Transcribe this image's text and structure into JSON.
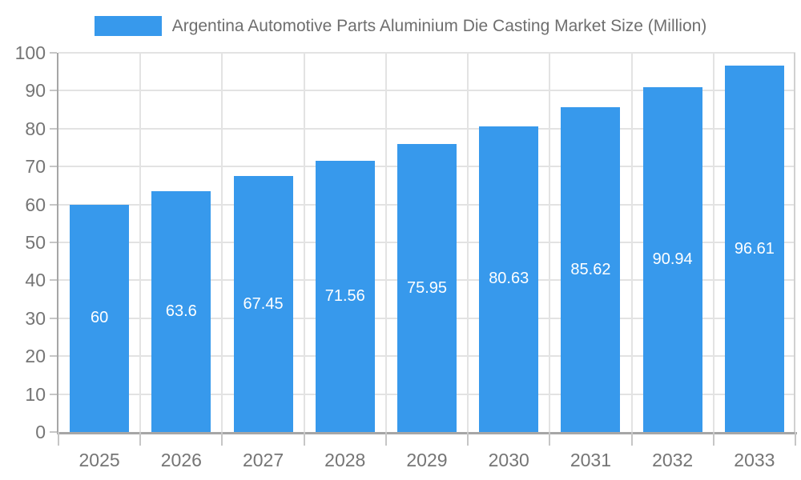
{
  "chart_data": {
    "type": "bar",
    "title": "Argentina Automotive Parts Aluminium Die Casting Market Size (Million)",
    "categories": [
      "2025",
      "2026",
      "2027",
      "2028",
      "2029",
      "2030",
      "2031",
      "2032",
      "2033"
    ],
    "values": [
      60,
      63.6,
      67.45,
      71.56,
      75.95,
      80.63,
      85.62,
      90.94,
      96.61
    ],
    "value_labels": [
      "60",
      "63.6",
      "67.45",
      "71.56",
      "75.95",
      "80.63",
      "85.62",
      "90.94",
      "96.61"
    ],
    "xlabel": "",
    "ylabel": "",
    "ylim": [
      0,
      100
    ],
    "ytick_step": 10,
    "grid": true,
    "legend_position": "top",
    "colors": {
      "bar": "#3799EC",
      "grid": "#E3E3E3",
      "axis": "#A6A6A6",
      "tick": "#C6C6C6",
      "plot_border_right": "#D0D0D0",
      "axis_label": "#757575",
      "value_label": "#FFFFFF",
      "legend_text": "#6E6E6E",
      "background": "#FFFFFF"
    }
  }
}
